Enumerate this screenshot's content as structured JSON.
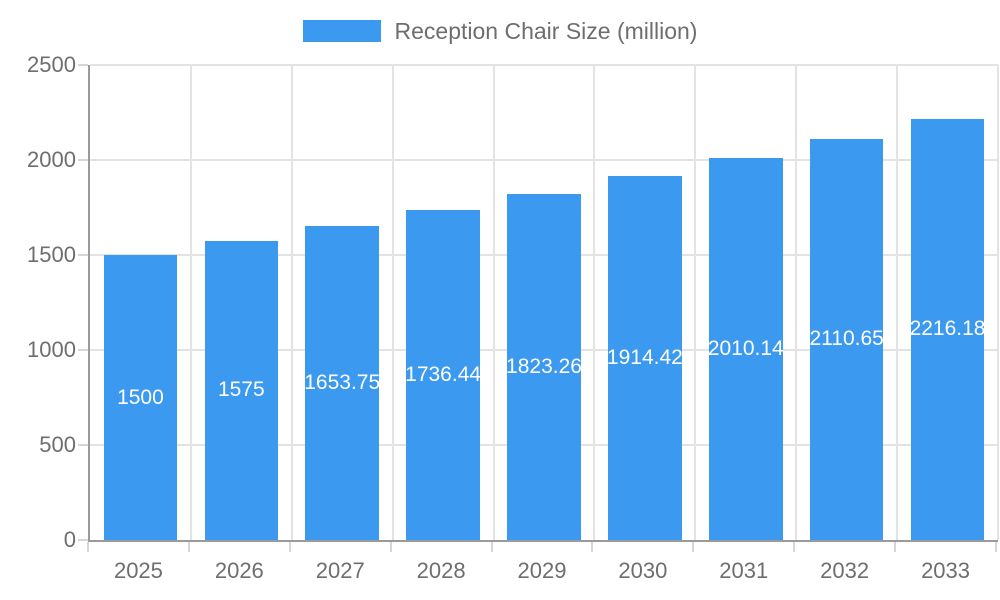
{
  "colors": {
    "bar": "#3b99ef",
    "grid": "#e3e3e3",
    "axis": "#9a9a9a",
    "tick": "#d6d6d6",
    "text": "#6e6e6e",
    "value_text": "#ffffff",
    "background": "#ffffff"
  },
  "chart_data": {
    "type": "bar",
    "title": "",
    "legend": "Reception Chair Size (million)",
    "legend_position": "top",
    "categories": [
      "2025",
      "2026",
      "2027",
      "2028",
      "2029",
      "2030",
      "2031",
      "2032",
      "2033"
    ],
    "values": [
      1500,
      1575,
      1653.75,
      1736.44,
      1823.26,
      1914.42,
      2010.14,
      2110.65,
      2216.18
    ],
    "value_labels": [
      "1500",
      "1575",
      "1653.75",
      "1736.44",
      "1823.26",
      "1914.42",
      "2010.14",
      "2110.65",
      "2216.18"
    ],
    "xlabel": "",
    "ylabel": "",
    "ylim": [
      0,
      2500
    ],
    "yticks": [
      0,
      500,
      1000,
      1500,
      2000,
      2500
    ],
    "ytick_labels": [
      "0",
      "500",
      "1000",
      "1500",
      "2000",
      "2500"
    ],
    "grid": true,
    "value_label_placement": "center-of-bar"
  }
}
